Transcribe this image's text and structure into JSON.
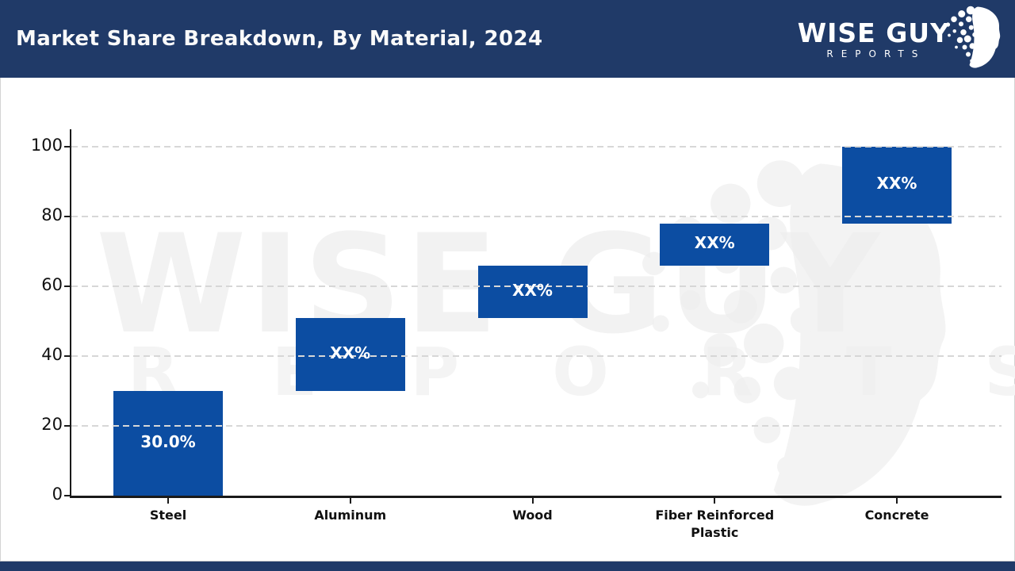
{
  "header": {
    "title": "Market Share Breakdown, By Material, 2024",
    "logo": {
      "line1": "WISE GUY",
      "line2": "REPORTS"
    }
  },
  "watermark": {
    "line1": "WISE GUY",
    "line2": "R E P O R T S"
  },
  "chart_data": {
    "type": "bar",
    "subtype": "waterfall",
    "title": "Market Share Breakdown, By Material, 2024",
    "categories": [
      "Steel",
      "Aluminum",
      "Wood",
      "Fiber Reinforced Plastic",
      "Concrete"
    ],
    "segments": [
      {
        "category": "Steel",
        "start": 0,
        "end": 30,
        "label": "30.0%"
      },
      {
        "category": "Aluminum",
        "start": 30,
        "end": 51,
        "label": "XX%"
      },
      {
        "category": "Wood",
        "start": 51,
        "end": 66,
        "label": "XX%"
      },
      {
        "category": "Fiber Reinforced Plastic",
        "start": 66,
        "end": 78,
        "label": "XX%"
      },
      {
        "category": "Concrete",
        "start": 78,
        "end": 100,
        "label": "XX%"
      }
    ],
    "yticks": [
      0,
      20,
      40,
      60,
      80,
      100
    ],
    "ylim": [
      0,
      105
    ],
    "xlabel": "",
    "ylabel": "",
    "grid": "horizontal-dashed",
    "legend": "none",
    "colors": {
      "bar": "#0C4DA2",
      "bar_label": "#FFFFFF",
      "gridline": "#D7D7D7",
      "axis": "#1A1A1A",
      "header_bg": "#203A68",
      "footer_bg": "#203A68"
    }
  }
}
